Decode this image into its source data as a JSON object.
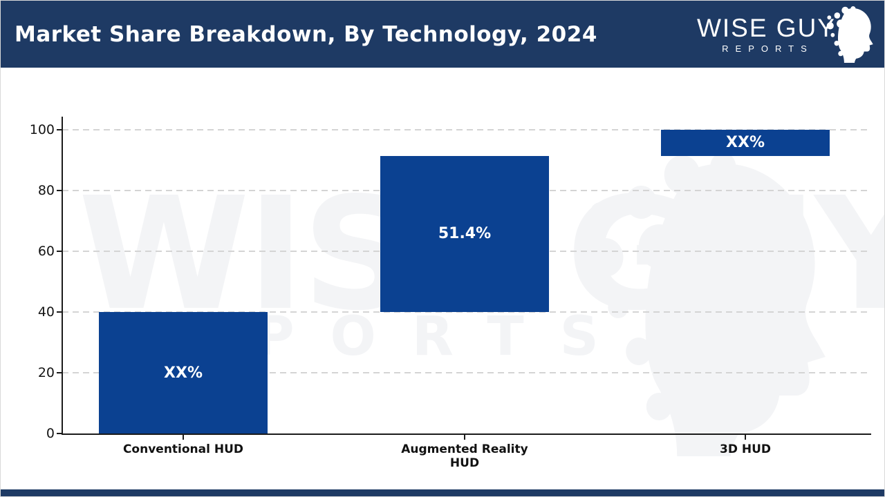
{
  "header": {
    "title": "Market Share Breakdown, By Technology, 2024",
    "brand_line1": "WISE GUY",
    "brand_line2": "REPORTS"
  },
  "watermark": {
    "line1": "WISE GUY",
    "line2": "REPORTS"
  },
  "chart_data": {
    "type": "bar",
    "subtype": "floating-waterfall",
    "title": "Market Share Breakdown, By Technology, 2024",
    "categories": [
      "Conventional HUD",
      "Augmented Reality\nHUD",
      "3D HUD"
    ],
    "segments": [
      {
        "category": "Conventional HUD",
        "start": 0,
        "end": 40,
        "value": 40,
        "label": "XX%"
      },
      {
        "category": "Augmented Reality HUD",
        "start": 40,
        "end": 91.4,
        "value": 51.4,
        "label": "51.4%"
      },
      {
        "category": "3D HUD",
        "start": 91.4,
        "end": 100,
        "value": 8.6,
        "label": "XX%"
      }
    ],
    "ylim": [
      0,
      100
    ],
    "yticks": [
      0,
      20,
      40,
      60,
      80,
      100
    ],
    "xlabel": "",
    "ylabel": "",
    "grid": "horizontal-dashed",
    "legend": "none"
  },
  "colors": {
    "header_bg": "#1E3A64",
    "footer_bg": "#1E3A64",
    "bar": "#0B4191",
    "bar_label": "#FFFFFF",
    "axis": "#1A1A1A",
    "gridline": "#D4D4D4",
    "watermark": "#F3F4F6",
    "background": "#FFFFFF"
  }
}
